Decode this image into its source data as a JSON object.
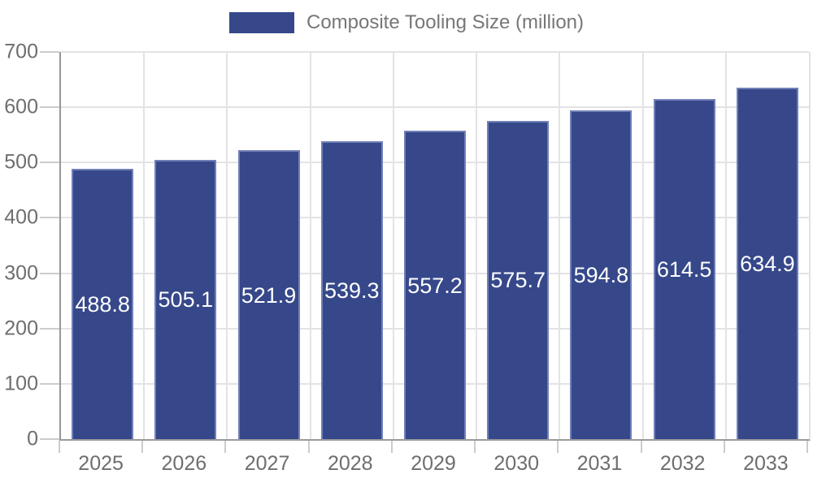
{
  "legend": {
    "label": "Composite Tooling Size (million)"
  },
  "chart_data": {
    "type": "bar",
    "title": "",
    "xlabel": "",
    "ylabel": "",
    "categories": [
      "2025",
      "2026",
      "2027",
      "2028",
      "2029",
      "2030",
      "2031",
      "2032",
      "2033"
    ],
    "series": [
      {
        "name": "Composite Tooling Size (million)",
        "values": [
          488.8,
          505.1,
          521.9,
          539.3,
          557.2,
          575.7,
          594.8,
          614.5,
          634.9
        ]
      }
    ],
    "value_labels": [
      "488.8",
      "505.1",
      "521.9",
      "539.3",
      "557.2",
      "575.7",
      "594.8",
      "614.5",
      "634.9"
    ],
    "ylim": [
      0,
      700
    ],
    "yticks": [
      0,
      100,
      200,
      300,
      400,
      500,
      600,
      700
    ],
    "grid": true,
    "legend_position": "top-center",
    "colors": {
      "bar_fill": "#36488a",
      "bar_border": "#7180b8",
      "axis_line": "#979797",
      "gridline": "#e3e3e6",
      "tick": "#cccccc",
      "axis_label_text": "#6e6e6e",
      "legend_text": "#777777",
      "value_label_text": "#ffffff",
      "background": "#ffffff"
    }
  }
}
